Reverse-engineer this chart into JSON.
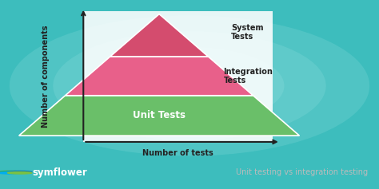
{
  "bg_outer": "#3dbdbd",
  "bg_ring1": "#5ecece",
  "bg_ring2": "#7adada",
  "bg_ring3": "#9ae8e8",
  "footer_color": "#2d3545",
  "white_wedge": "#ffffff",
  "unit_color": "#6abf69",
  "int_color": "#e8608a",
  "sys_color": "#d44c6e",
  "unit_label": "Unit Tests",
  "sys_label_line1": "System",
  "sys_label_line2": "Tests",
  "int_label_line1": "Integration",
  "int_label_line2": "Tests",
  "x_axis_label": "Number of tests",
  "y_axis_label": "Number of components",
  "footer_left": "symflower",
  "footer_right": "Unit testing vs integration testing",
  "axis_color": "#222222",
  "label_color": "#222222",
  "logo_colors": [
    "#4CAF50",
    "#2196F3",
    "#FF5722",
    "#9C27B0"
  ]
}
